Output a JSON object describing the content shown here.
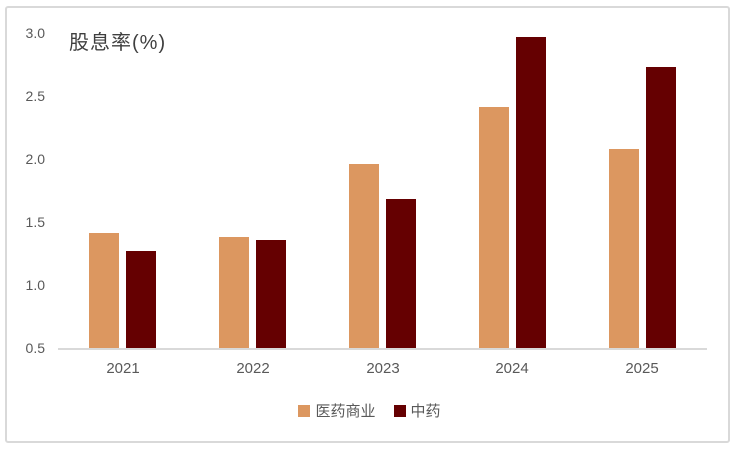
{
  "title": "股息率(%)",
  "colors": {
    "series_pharma_commerce": "#DC9760",
    "series_tcm": "#650001",
    "axis_text": "#595959",
    "title_text": "#3F3F3F",
    "axis_line": "#D9D9D9",
    "frame_border": "#D9D9D9",
    "background": "#FFFFFF"
  },
  "chart_data": {
    "type": "bar",
    "title": "股息率(%)",
    "categories": [
      "2021",
      "2022",
      "2023",
      "2024",
      "2025"
    ],
    "series": [
      {
        "name": "医药商业",
        "color": "#DC9760",
        "values": [
          1.41,
          1.38,
          1.96,
          2.41,
          2.08
        ]
      },
      {
        "name": "中药",
        "color": "#650001",
        "values": [
          1.27,
          1.36,
          1.68,
          2.97,
          2.73
        ]
      }
    ],
    "xlabel": "",
    "ylabel": "股息率(%)",
    "ylim": [
      0.5,
      3.0
    ],
    "y_tick_step": 0.5,
    "y_tick_labels": [
      "3.0",
      "2.5",
      "2.0",
      "1.5",
      "1.0",
      "0.5"
    ],
    "grid": false,
    "legend_position": "bottom-center"
  }
}
